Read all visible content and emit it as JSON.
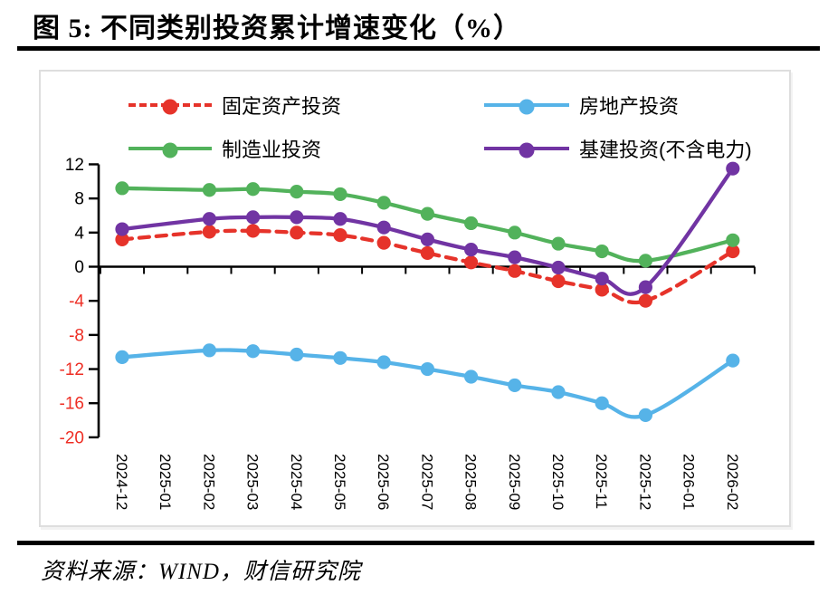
{
  "title": "图 5:  不同类别投资累计增速变化（%）",
  "footer": "资料来源：WIND，财信研究院",
  "chart_data": {
    "type": "line",
    "title": "不同类别投资累计增速变化（%）",
    "categories": [
      "2024-12",
      "2025-01",
      "2025-02",
      "2025-03",
      "2025-04",
      "2025-05",
      "2025-06",
      "2025-07",
      "2025-08",
      "2025-09",
      "2025-10",
      "2025-11",
      "2025-12",
      "2026-01",
      "2026-02"
    ],
    "series": [
      {
        "key": "fixed-asset-investment",
        "name": "固定资产投资",
        "color": "#e6332a",
        "dashed": true,
        "values": [
          3.2,
          null,
          4.1,
          4.2,
          4.0,
          3.7,
          2.8,
          1.6,
          0.5,
          -0.5,
          -1.7,
          -2.7,
          -4.0,
          null,
          1.8
        ]
      },
      {
        "key": "real-estate-investment",
        "name": "房地产投资",
        "color": "#56b3e8",
        "dashed": false,
        "values": [
          -10.6,
          null,
          -9.8,
          -9.9,
          -10.3,
          -10.7,
          -11.2,
          -12.0,
          -12.9,
          -13.9,
          -14.7,
          -16.0,
          -17.4,
          null,
          -11.0
        ]
      },
      {
        "key": "manufacturing-investment",
        "name": "制造业投资",
        "color": "#52b25b",
        "dashed": false,
        "values": [
          9.2,
          null,
          9.0,
          9.1,
          8.8,
          8.5,
          7.5,
          6.2,
          5.1,
          4.0,
          2.7,
          1.8,
          0.7,
          null,
          3.1
        ]
      },
      {
        "key": "infrastructure-investment",
        "name": "基建投资(不含电力)",
        "color": "#7134a3",
        "dashed": false,
        "values": [
          4.4,
          null,
          5.6,
          5.8,
          5.8,
          5.6,
          4.6,
          3.2,
          2.0,
          1.1,
          -0.1,
          -1.4,
          -2.4,
          null,
          11.5
        ]
      }
    ],
    "y_ticks": [
      12,
      8,
      4,
      0,
      -4,
      -8,
      -12,
      -16,
      -20
    ],
    "ylim": [
      -20,
      12
    ],
    "grid": false,
    "smooth_lines": true,
    "legend_position": "top-inside-two-columns",
    "axis_color": "#000000",
    "positive_tick_label_color": "#000000",
    "negative_tick_label_color": "#ee2e24",
    "note": "无2025-01与2026-01数据点（1-2月累计合并公布）"
  }
}
